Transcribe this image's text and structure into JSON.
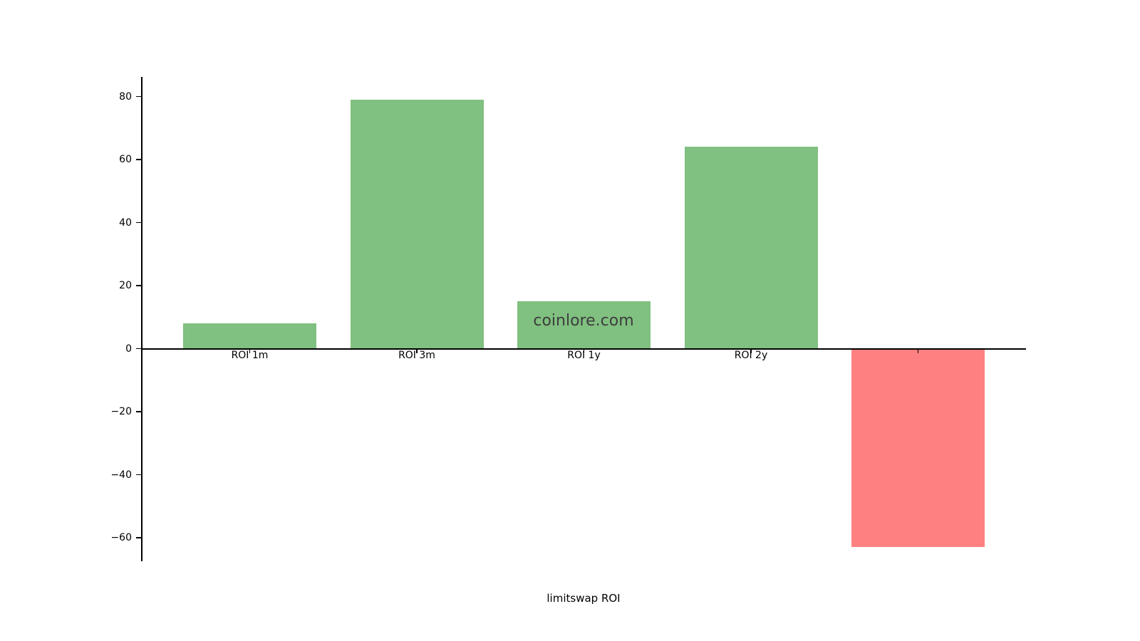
{
  "chart_data": {
    "type": "bar",
    "title": "limitswap ROI",
    "title_position": "bottom-center",
    "watermark": "coinlore.com",
    "categories": [
      "ROI 1m",
      "ROI 3m",
      "ROI 1y",
      "ROI 2y",
      ""
    ],
    "series": [
      {
        "name": "limitswap ROI",
        "values": [
          8,
          79,
          15,
          64,
          -63
        ]
      }
    ],
    "xlabel": "",
    "ylabel": "",
    "yticks": [
      80,
      60,
      40,
      20,
      0,
      -20,
      -40,
      -60
    ],
    "ylim": [
      -67.5,
      86
    ],
    "grid": false,
    "legend": "none",
    "colors": {
      "positive_bar": "#80c080",
      "negative_bar": "#ff8080",
      "axis": "#000000",
      "tick_text": "#000000",
      "watermark": "#3d3d3d",
      "background": "#ffffff"
    }
  }
}
